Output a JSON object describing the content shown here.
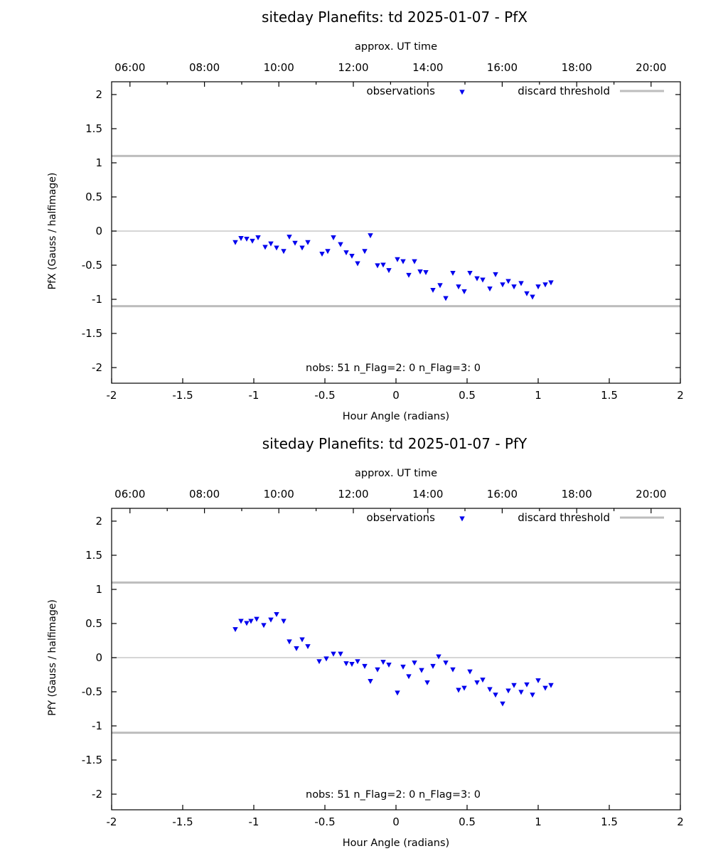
{
  "colors": {
    "marker": "#0000ee",
    "threshold_line": "#bdbdbd",
    "zero_line": "#c9c9c9",
    "axis": "#000000",
    "background": "#ffffff"
  },
  "chart_data": [
    {
      "type": "scatter",
      "title": "siteday Planefits:  td  2025-01-07  -  PfX",
      "x2label": "approx. UT time",
      "xlabel": "Hour Angle (radians)",
      "ylabel": "PfX (Gauss / halfimage)",
      "xlim": [
        -2,
        2
      ],
      "ylim": [
        -2.2,
        2.2
      ],
      "grid": false,
      "legend_position": "top-inside",
      "x_ticks": [
        -2,
        -1.5,
        -1,
        -0.5,
        0,
        0.5,
        1,
        1.5,
        2
      ],
      "x_tick_labels": [
        "-2",
        "-1.5",
        "-1",
        "-0.5",
        "0",
        "0.5",
        "1",
        "1.5",
        "2"
      ],
      "y_ticks": [
        2,
        1.5,
        1,
        0.5,
        0,
        -0.5,
        -1,
        -1.5,
        -2
      ],
      "y_tick_labels": [
        "2",
        "1.5",
        "1",
        "0.5",
        "0",
        "-0.5",
        "-1",
        "-1.5",
        "-2"
      ],
      "x2_ticks": [
        {
          "x": -1.871,
          "label": "06:00"
        },
        {
          "x": -1.609,
          "label": ""
        },
        {
          "x": -1.347,
          "label": "08:00"
        },
        {
          "x": -1.085,
          "label": ""
        },
        {
          "x": -0.824,
          "label": "10:00"
        },
        {
          "x": -0.562,
          "label": ""
        },
        {
          "x": -0.3,
          "label": "12:00"
        },
        {
          "x": -0.038,
          "label": ""
        },
        {
          "x": 0.224,
          "label": "14:00"
        },
        {
          "x": 0.485,
          "label": ""
        },
        {
          "x": 0.747,
          "label": "16:00"
        },
        {
          "x": 1.009,
          "label": ""
        },
        {
          "x": 1.271,
          "label": "18:00"
        },
        {
          "x": 1.533,
          "label": ""
        },
        {
          "x": 1.794,
          "label": "20:00"
        }
      ],
      "legend": [
        {
          "label": "observations",
          "sample": "marker"
        },
        {
          "label": "discard threshold",
          "sample": "line"
        }
      ],
      "discard_thresholds": [
        1.1,
        -1.1
      ],
      "zero_line": 0,
      "stats": {
        "nobs": "51",
        "n_flag2": "0",
        "n_flag3": "0",
        "text": "nobs: 51   n_Flag=2: 0   n_Flag=3: 0"
      },
      "series": [
        {
          "name": "observations",
          "marker": "triangle-down",
          "points": [
            [
              -1.13,
              -0.16
            ],
            [
              -1.09,
              -0.1
            ],
            [
              -1.05,
              -0.11
            ],
            [
              -1.01,
              -0.14
            ],
            [
              -0.97,
              -0.09
            ],
            [
              -0.92,
              -0.23
            ],
            [
              -0.88,
              -0.18
            ],
            [
              -0.84,
              -0.24
            ],
            [
              -0.79,
              -0.29
            ],
            [
              -0.75,
              -0.08
            ],
            [
              -0.71,
              -0.17
            ],
            [
              -0.66,
              -0.24
            ],
            [
              -0.62,
              -0.16
            ],
            [
              -0.52,
              -0.33
            ],
            [
              -0.48,
              -0.29
            ],
            [
              -0.44,
              -0.09
            ],
            [
              -0.39,
              -0.19
            ],
            [
              -0.35,
              -0.31
            ],
            [
              -0.31,
              -0.36
            ],
            [
              -0.27,
              -0.47
            ],
            [
              -0.22,
              -0.29
            ],
            [
              -0.18,
              -0.06
            ],
            [
              -0.13,
              -0.5
            ],
            [
              -0.09,
              -0.49
            ],
            [
              -0.05,
              -0.57
            ],
            [
              0.01,
              -0.41
            ],
            [
              0.05,
              -0.44
            ],
            [
              0.09,
              -0.64
            ],
            [
              0.13,
              -0.44
            ],
            [
              0.17,
              -0.59
            ],
            [
              0.21,
              -0.6
            ],
            [
              0.26,
              -0.86
            ],
            [
              0.31,
              -0.79
            ],
            [
              0.35,
              -0.98
            ],
            [
              0.4,
              -0.61
            ],
            [
              0.44,
              -0.81
            ],
            [
              0.48,
              -0.88
            ],
            [
              0.52,
              -0.61
            ],
            [
              0.57,
              -0.69
            ],
            [
              0.61,
              -0.71
            ],
            [
              0.66,
              -0.84
            ],
            [
              0.7,
              -0.63
            ],
            [
              0.75,
              -0.78
            ],
            [
              0.79,
              -0.73
            ],
            [
              0.83,
              -0.81
            ],
            [
              0.88,
              -0.76
            ],
            [
              0.92,
              -0.91
            ],
            [
              0.96,
              -0.96
            ],
            [
              1.0,
              -0.81
            ],
            [
              1.05,
              -0.78
            ],
            [
              1.09,
              -0.75
            ]
          ]
        }
      ]
    },
    {
      "type": "scatter",
      "title": "siteday Planefits:  td  2025-01-07  -  PfY",
      "x2label": "approx. UT time",
      "xlabel": "Hour Angle (radians)",
      "ylabel": "PfY (Gauss / halfimage)",
      "xlim": [
        -2,
        2
      ],
      "ylim": [
        -2.2,
        2.2
      ],
      "grid": false,
      "legend_position": "top-inside",
      "x_ticks": [
        -2,
        -1.5,
        -1,
        -0.5,
        0,
        0.5,
        1,
        1.5,
        2
      ],
      "x_tick_labels": [
        "-2",
        "-1.5",
        "-1",
        "-0.5",
        "0",
        "0.5",
        "1",
        "1.5",
        "2"
      ],
      "y_ticks": [
        2,
        1.5,
        1,
        0.5,
        0,
        -0.5,
        -1,
        -1.5,
        -2
      ],
      "y_tick_labels": [
        "2",
        "1.5",
        "1",
        "0.5",
        "0",
        "-0.5",
        "-1",
        "-1.5",
        "-2"
      ],
      "x2_ticks": [
        {
          "x": -1.871,
          "label": "06:00"
        },
        {
          "x": -1.609,
          "label": ""
        },
        {
          "x": -1.347,
          "label": "08:00"
        },
        {
          "x": -1.085,
          "label": ""
        },
        {
          "x": -0.824,
          "label": "10:00"
        },
        {
          "x": -0.562,
          "label": ""
        },
        {
          "x": -0.3,
          "label": "12:00"
        },
        {
          "x": -0.038,
          "label": ""
        },
        {
          "x": 0.224,
          "label": "14:00"
        },
        {
          "x": 0.485,
          "label": ""
        },
        {
          "x": 0.747,
          "label": "16:00"
        },
        {
          "x": 1.009,
          "label": ""
        },
        {
          "x": 1.271,
          "label": "18:00"
        },
        {
          "x": 1.533,
          "label": ""
        },
        {
          "x": 1.794,
          "label": "20:00"
        }
      ],
      "legend": [
        {
          "label": "observations",
          "sample": "marker"
        },
        {
          "label": "discard threshold",
          "sample": "line"
        }
      ],
      "discard_thresholds": [
        1.1,
        -1.1
      ],
      "zero_line": 0,
      "stats": {
        "nobs": "51",
        "n_flag2": "0",
        "n_flag3": "0",
        "text": "nobs: 51   n_Flag=2: 0   n_Flag=3: 0"
      },
      "series": [
        {
          "name": "observations",
          "marker": "triangle-down",
          "points": [
            [
              -1.13,
              0.42
            ],
            [
              -1.09,
              0.54
            ],
            [
              -1.05,
              0.51
            ],
            [
              -1.02,
              0.54
            ],
            [
              -0.98,
              0.57
            ],
            [
              -0.93,
              0.48
            ],
            [
              -0.88,
              0.56
            ],
            [
              -0.84,
              0.64
            ],
            [
              -0.79,
              0.54
            ],
            [
              -0.75,
              0.24
            ],
            [
              -0.7,
              0.14
            ],
            [
              -0.66,
              0.27
            ],
            [
              -0.62,
              0.17
            ],
            [
              -0.54,
              -0.05
            ],
            [
              -0.49,
              -0.01
            ],
            [
              -0.44,
              0.06
            ],
            [
              -0.39,
              0.06
            ],
            [
              -0.35,
              -0.08
            ],
            [
              -0.31,
              -0.09
            ],
            [
              -0.27,
              -0.05
            ],
            [
              -0.22,
              -0.12
            ],
            [
              -0.18,
              -0.34
            ],
            [
              -0.13,
              -0.17
            ],
            [
              -0.09,
              -0.06
            ],
            [
              -0.05,
              -0.1
            ],
            [
              0.01,
              -0.51
            ],
            [
              0.05,
              -0.13
            ],
            [
              0.09,
              -0.27
            ],
            [
              0.13,
              -0.07
            ],
            [
              0.18,
              -0.18
            ],
            [
              0.22,
              -0.36
            ],
            [
              0.26,
              -0.12
            ],
            [
              0.3,
              0.02
            ],
            [
              0.35,
              -0.07
            ],
            [
              0.4,
              -0.17
            ],
            [
              0.44,
              -0.47
            ],
            [
              0.48,
              -0.44
            ],
            [
              0.52,
              -0.2
            ],
            [
              0.57,
              -0.36
            ],
            [
              0.61,
              -0.32
            ],
            [
              0.66,
              -0.46
            ],
            [
              0.7,
              -0.54
            ],
            [
              0.75,
              -0.67
            ],
            [
              0.79,
              -0.48
            ],
            [
              0.83,
              -0.4
            ],
            [
              0.88,
              -0.5
            ],
            [
              0.92,
              -0.39
            ],
            [
              0.96,
              -0.54
            ],
            [
              1.0,
              -0.33
            ],
            [
              1.05,
              -0.44
            ],
            [
              1.09,
              -0.4
            ]
          ]
        }
      ]
    }
  ]
}
